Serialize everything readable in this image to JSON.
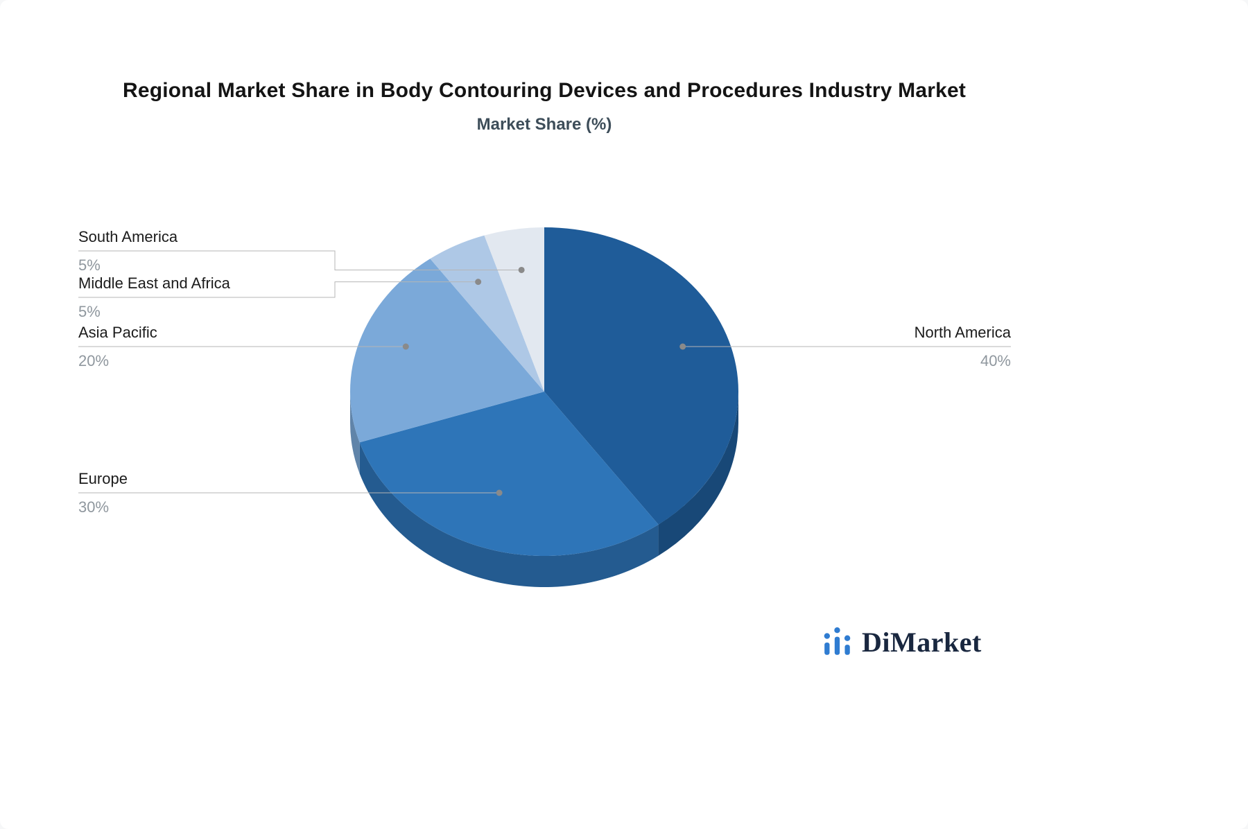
{
  "title": "Regional Market Share in Body Contouring Devices and Procedures Industry Market",
  "subtitle": "Market Share (%)",
  "logo": {
    "text": "DiMarket"
  },
  "chart_data": {
    "type": "pie",
    "title": "Regional Market Share in Body Contouring Devices and Procedures Industry Market",
    "subtitle": "Market Share (%)",
    "unit": "%",
    "direction": "clockwise",
    "start_angle_deg": 0,
    "legend": "none",
    "label_style": "callout-lines",
    "style": "3d-pie",
    "slices": [
      {
        "label": "North America",
        "value": 40,
        "display": "40%",
        "color": "#1f5c99"
      },
      {
        "label": "Europe",
        "value": 30,
        "display": "30%",
        "color": "#2e75b8"
      },
      {
        "label": "Asia Pacific",
        "value": 20,
        "display": "20%",
        "color": "#7ba9d9"
      },
      {
        "label": "Middle East and Africa",
        "value": 5,
        "display": "5%",
        "color": "#aec8e6"
      },
      {
        "label": "South America",
        "value": 5,
        "display": "5%",
        "color": "#e2e8f0"
      }
    ],
    "line_color": "#b5b5b5",
    "dot_color": "#8a8a8a"
  }
}
